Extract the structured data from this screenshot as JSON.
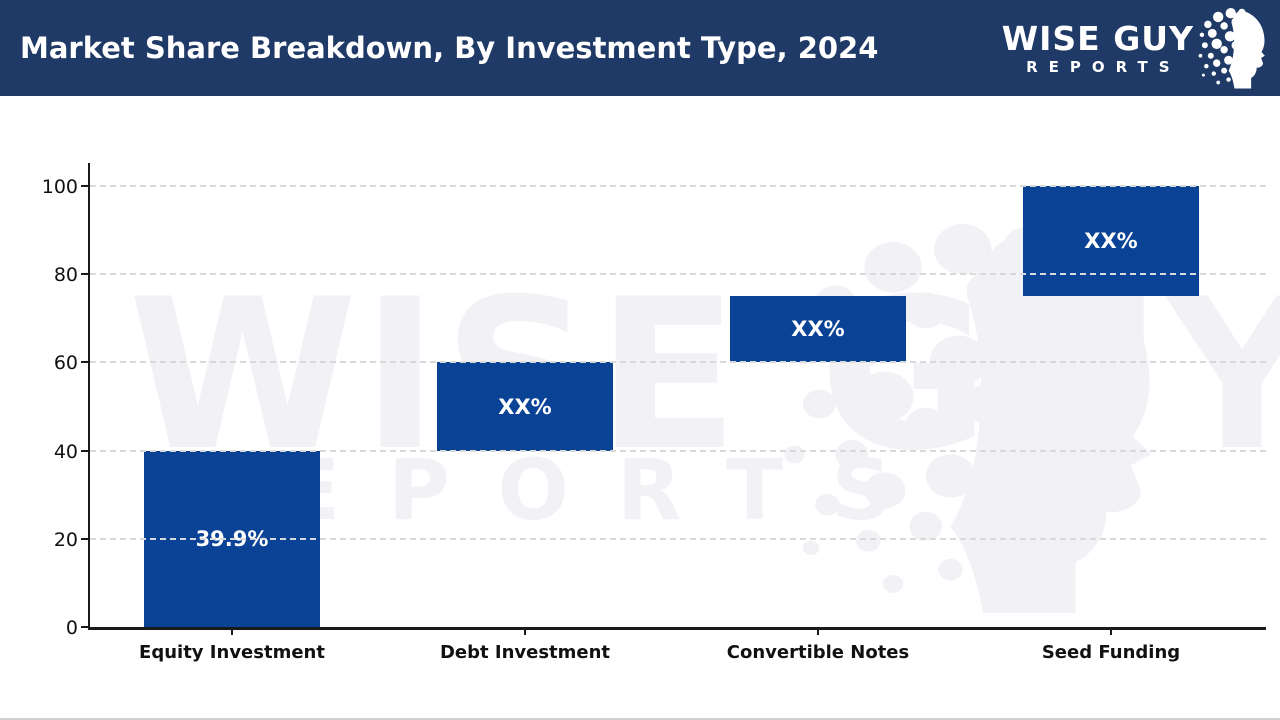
{
  "header": {
    "title": "Market Share Breakdown, By Investment Type, 2024",
    "logo": {
      "wordmark": "WISE GUY",
      "subtext": "REPORTS"
    }
  },
  "watermark": {
    "line1": "WISE GUY",
    "line2": "REPORTS"
  },
  "chart_data": {
    "type": "bar",
    "subtype": "floating-waterfall",
    "title": "Market Share Breakdown, By Investment Type, 2024",
    "categories": [
      "Equity Investment",
      "Debt Investment",
      "Convertible Notes",
      "Seed Funding"
    ],
    "segments": [
      {
        "category": "Equity Investment",
        "start": 0,
        "end": 39.9,
        "label": "39.9%"
      },
      {
        "category": "Debt Investment",
        "start": 39.9,
        "end": 60,
        "label": "XX%"
      },
      {
        "category": "Convertible Notes",
        "start": 60,
        "end": 75,
        "label": "XX%"
      },
      {
        "category": "Seed Funding",
        "start": 75,
        "end": 100,
        "label": "XX%"
      }
    ],
    "ylim": [
      0,
      100
    ],
    "y_ticks": [
      0,
      20,
      40,
      60,
      80,
      100
    ],
    "xlabel": "",
    "ylabel": "",
    "legend": "none",
    "grid": {
      "horizontal": true,
      "style": "dashed",
      "color": "#d9d9d9"
    },
    "bar_color": "#0a4296",
    "bar_label_color": "#ffffff",
    "axis_color": "#1a1a1a",
    "header_bg_color": "#1f3a66",
    "watermark_color": "#f2f2f6",
    "background_color": "#ffffff"
  }
}
